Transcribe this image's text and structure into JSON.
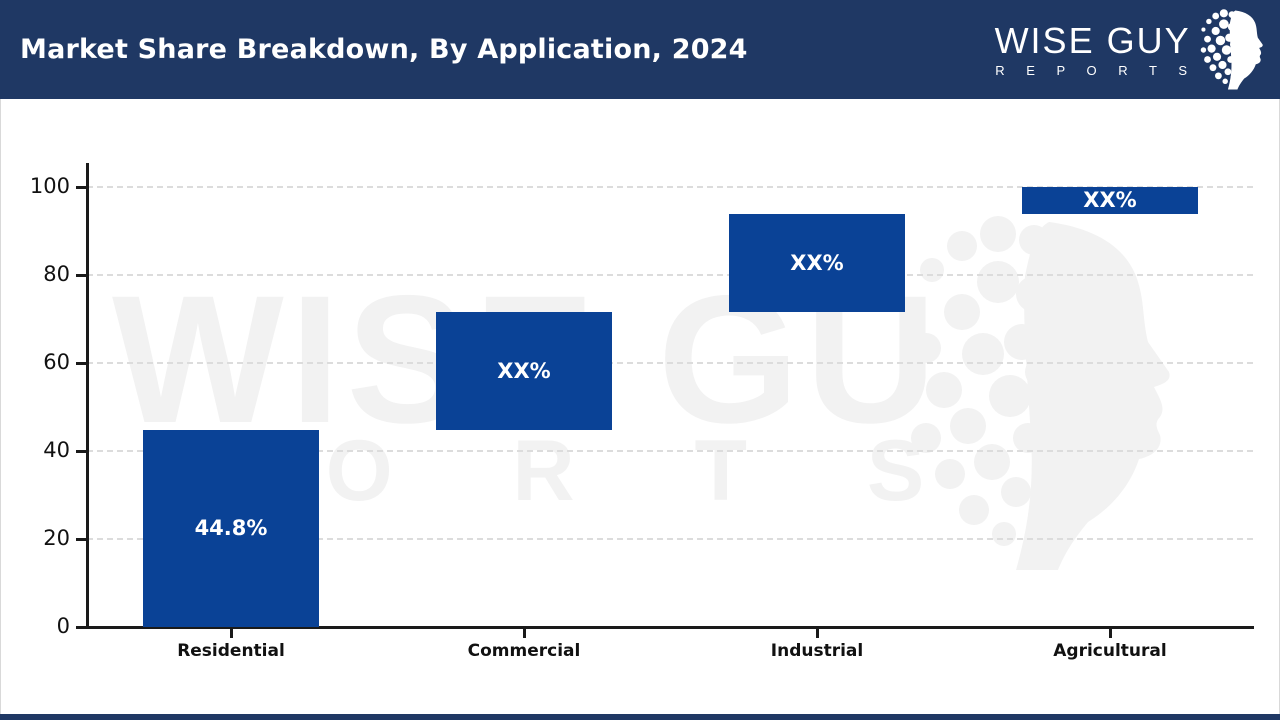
{
  "header": {
    "title": "Market Share Breakdown, By Application, 2024",
    "bg_color": "#1f3864",
    "logo": {
      "line1": "WISE GUY",
      "line2": "R E P O R T S"
    }
  },
  "watermark": {
    "line1": "WISE GU",
    "line2": "P O R T S"
  },
  "footer": {
    "bg_color": "#1f3864"
  },
  "colors": {
    "bar": "#0a4296",
    "bar_label": "#ffffff",
    "grid": "#dcdcdc",
    "axis": "#1a1a1a",
    "watermark": "#f2f2f2"
  },
  "chart_data": {
    "type": "bar",
    "subtype": "waterfall",
    "title": "Market Share Breakdown, By Application, 2024",
    "xlabel": "",
    "ylabel": "",
    "categories": [
      "Residential",
      "Commercial",
      "Industrial",
      "Agricultural"
    ],
    "segments": [
      {
        "category": "Residential",
        "start": 0,
        "end": 44.8,
        "label": "44.8%"
      },
      {
        "category": "Commercial",
        "start": 44.8,
        "end": 71.5,
        "label": "XX%"
      },
      {
        "category": "Industrial",
        "start": 71.5,
        "end": 93.8,
        "label": "XX%"
      },
      {
        "category": "Agricultural",
        "start": 93.8,
        "end": 100,
        "label": "XX%"
      }
    ],
    "yticks": [
      0,
      20,
      40,
      60,
      80,
      100
    ],
    "ylim": [
      0,
      105.5
    ],
    "grid": "horizontal-dashed",
    "legend": "none"
  }
}
